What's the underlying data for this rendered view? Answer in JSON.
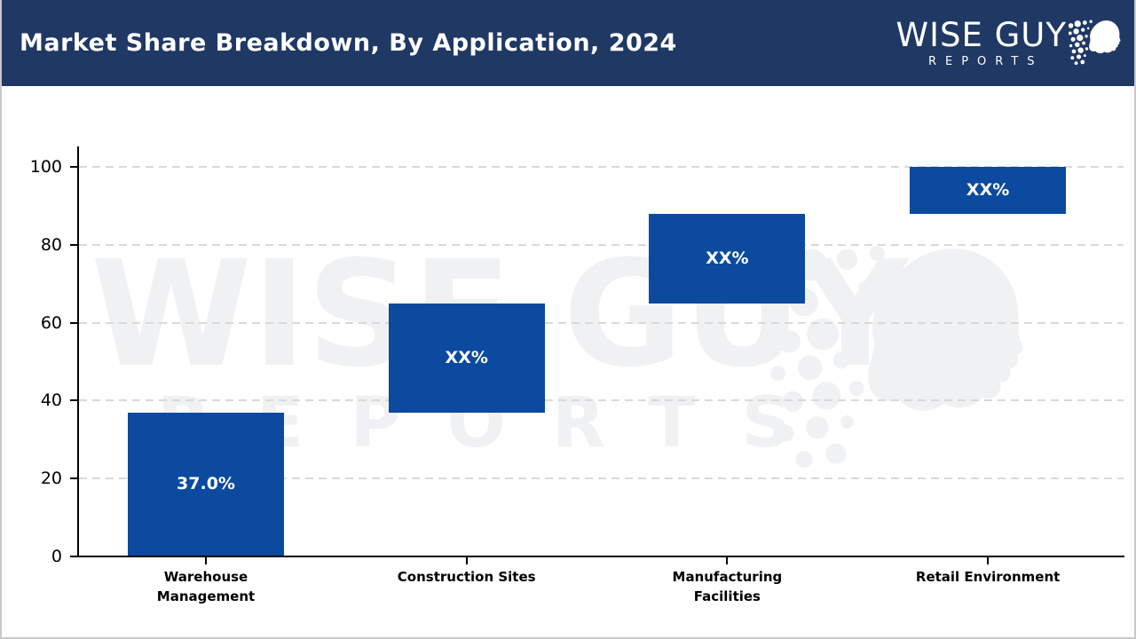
{
  "header": {
    "title": "Market Share Breakdown, By Application, 2024",
    "logo": {
      "wordmark": "WISE GUY",
      "subtext": "REPORTS"
    }
  },
  "watermark": {
    "line1": "WISE GUY",
    "line2": "REPORTS"
  },
  "chart_data": {
    "type": "bar",
    "subtype": "waterfall",
    "title": "Market Share Breakdown, By Application, 2024",
    "categories": [
      "Warehouse Management",
      "Construction Sites",
      "Manufacturing Facilities",
      "Retail Environment"
    ],
    "values": [
      37.0,
      28.0,
      23.0,
      12.0
    ],
    "segment_start": [
      0,
      37,
      65,
      88
    ],
    "segment_end": [
      37,
      65,
      88,
      100
    ],
    "bar_labels": [
      "37.0%",
      "XX%",
      "XX%",
      "XX%"
    ],
    "ylim": [
      0,
      100
    ],
    "yticks": [
      0,
      20,
      40,
      60,
      80,
      100
    ],
    "xlabel": "",
    "ylabel": "",
    "grid": "horizontal-dashed",
    "legend_position": "none",
    "bar_color": "#0b4a9e",
    "bar_label_color": "#ffffff"
  },
  "colors": {
    "header_bg": "#1f3864",
    "bar": "#0b4a9e",
    "gridline": "#d9d9d9",
    "watermark": "#eff1f3",
    "axis": "#000000",
    "page_border": "#c9c9c9"
  }
}
